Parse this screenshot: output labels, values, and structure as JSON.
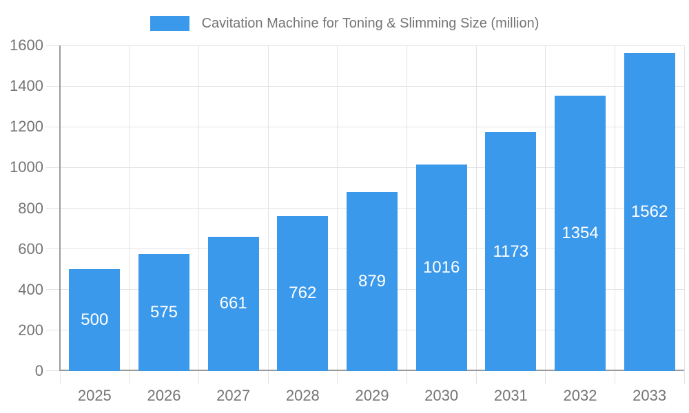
{
  "chart_data": {
    "type": "bar",
    "title": "Cavitation Machine for Toning & Slimming Size (million)",
    "categories": [
      "2025",
      "2026",
      "2027",
      "2028",
      "2029",
      "2030",
      "2031",
      "2032",
      "2033"
    ],
    "values": [
      500,
      575,
      661,
      762,
      879,
      1016,
      1173,
      1354,
      1562
    ],
    "xlabel": "",
    "ylabel": "",
    "ylim": [
      0,
      1600
    ],
    "ytick_step": 200,
    "grid": true,
    "legend_position": "top",
    "bar_color": "#3b99ec",
    "value_label_color": "#ffffff",
    "grid_color": "#e3e3e3",
    "axis_line_color": "#9a9a9a",
    "text_color": "#757575",
    "background_color": "#ffffff"
  }
}
